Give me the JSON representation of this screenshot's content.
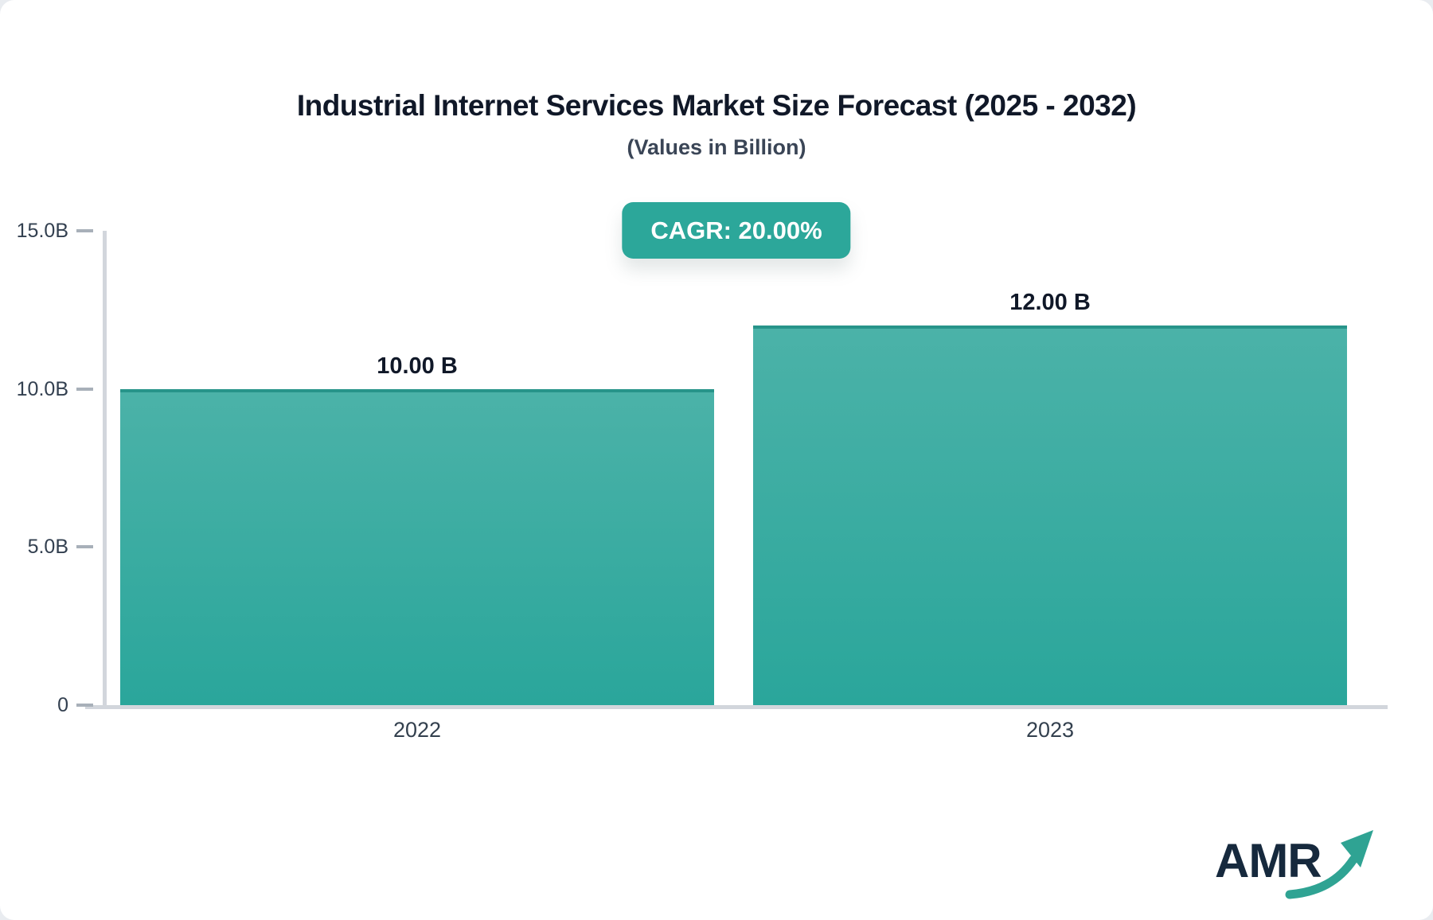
{
  "page": {
    "card_background": "#ffffff",
    "outer_background": "#e9ecf0"
  },
  "header": {
    "title": "Industrial Internet Services Market Size Forecast (2025 - 2032)",
    "subtitle": "(Values in Billion)"
  },
  "badge": {
    "label": "CAGR: 20.00%",
    "background": "#2ca79a",
    "text_color": "#ffffff"
  },
  "chart_data": {
    "type": "bar",
    "categories": [
      "2022",
      "2023"
    ],
    "values": [
      10.0,
      12.0
    ],
    "value_labels": [
      "10.00 B",
      "12.00 B"
    ],
    "title": "Industrial Internet Services Market Size Forecast (2025 - 2032)",
    "subtitle": "(Values in Billion)",
    "xlabel": "",
    "ylabel": "",
    "ylim": [
      0,
      15
    ],
    "y_ticks": [
      {
        "label": "15.0B",
        "value": 15
      },
      {
        "label": "10.0B",
        "value": 10
      },
      {
        "label": "5.0B",
        "value": 5
      },
      {
        "label": "0",
        "value": 0
      }
    ],
    "grid": false,
    "legend": false,
    "bar_color_top": "#4bb2a8",
    "bar_color_bottom": "#2aa69b",
    "bar_border_color": "#27948a",
    "axis_color": "#d2d6dc",
    "tick_color": "#a8b0b9"
  },
  "logo": {
    "text": "AMR",
    "text_color": "#16293d",
    "arrow_color": "#2fa393"
  }
}
